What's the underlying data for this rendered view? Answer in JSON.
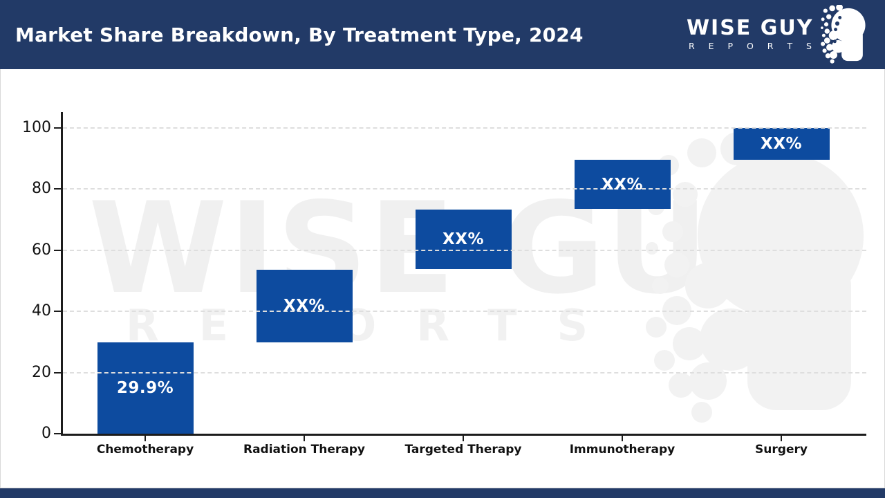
{
  "header": {
    "title": "Market Share Breakdown, By Treatment Type, 2024",
    "background_color": "#223a67",
    "logo": {
      "brand_line1": "WISE GUY",
      "brand_line2": "R E P O R T S"
    }
  },
  "watermark": {
    "line1": "WISE GUY",
    "line2": "REPORTS"
  },
  "footer": {
    "background_color": "#223a67"
  },
  "chart_data": {
    "type": "bar",
    "subtype": "waterfall",
    "title": "Market Share Breakdown, By Treatment Type, 2024",
    "xlabel": "",
    "ylabel": "",
    "categories": [
      "Chemotherapy",
      "Radiation Therapy",
      "Targeted Therapy",
      "Immunotherapy",
      "Surgery"
    ],
    "segments": [
      {
        "category": "Chemotherapy",
        "start": 0,
        "end": 29.9,
        "label": "29.9%"
      },
      {
        "category": "Radiation Therapy",
        "start": 29.9,
        "end": 53.6,
        "label": "XX%"
      },
      {
        "category": "Targeted Therapy",
        "start": 53.8,
        "end": 73.3,
        "label": "XX%"
      },
      {
        "category": "Immunotherapy",
        "start": 73.5,
        "end": 89.6,
        "label": "XX%"
      },
      {
        "category": "Surgery",
        "start": 89.6,
        "end": 100,
        "label": "XX%"
      }
    ],
    "y_ticks": [
      0,
      20,
      40,
      60,
      80,
      100
    ],
    "ylim": [
      0,
      105
    ],
    "bar_color": "#0d4b9f",
    "grid": "horizontal dashed",
    "legend": "none"
  }
}
